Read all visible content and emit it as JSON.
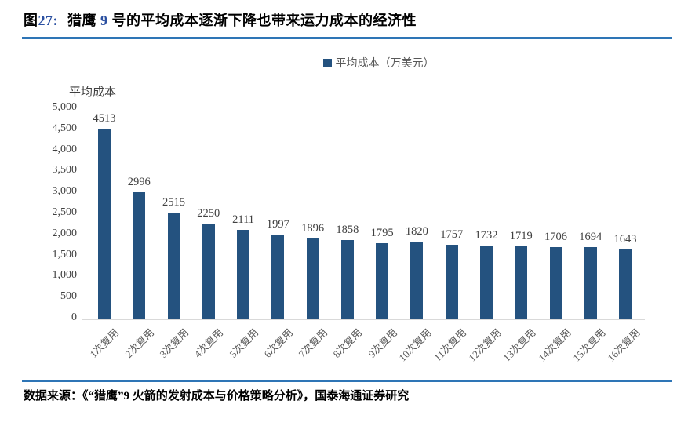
{
  "title": {
    "fig_char": "图",
    "fig_num": "27:",
    "text_a": "猎鹰 ",
    "text_num": "9",
    "text_b": " 号的平均成本逐渐下降也带来运力成本的经济性"
  },
  "legend": {
    "label": "平均成本（万美元）"
  },
  "axis": {
    "y_title": "平均成本"
  },
  "chart_data": {
    "type": "bar",
    "title": "平均成本（万美元）",
    "xlabel": "",
    "ylabel": "平均成本",
    "categories": [
      "1次复用",
      "2次复用",
      "3次复用",
      "4次复用",
      "5次复用",
      "6次复用",
      "7次复用",
      "8次复用",
      "9次复用",
      "10次复用",
      "11次复用",
      "12次复用",
      "13次复用",
      "14次复用",
      "15次复用",
      "16次复用"
    ],
    "values": [
      4513,
      2996,
      2515,
      2250,
      2111,
      1997,
      1896,
      1858,
      1795,
      1820,
      1757,
      1732,
      1719,
      1706,
      1694,
      1643
    ],
    "ylim": [
      0,
      5000
    ],
    "ytick_step": 500,
    "ytick_labels": [
      "0",
      "500",
      "1,000",
      "1,500",
      "2,000",
      "2,500",
      "3,000",
      "3,500",
      "4,000",
      "4,500",
      "5,000"
    ],
    "grid": false,
    "legend_position": "top",
    "bar_color": "#24527f",
    "data_labels": true
  },
  "source": {
    "text": "数据来源：《“猎鹰”9 火箭的发射成本与价格策略分析》，国泰海通证券研究"
  },
  "colors": {
    "bar": "#24527f",
    "rule_blue": "#2e75b6",
    "title_digit_blue": "#2b50a1",
    "label_gray": "#595959",
    "tick_gray": "#404040",
    "axis_line": "#d9d9d9"
  }
}
